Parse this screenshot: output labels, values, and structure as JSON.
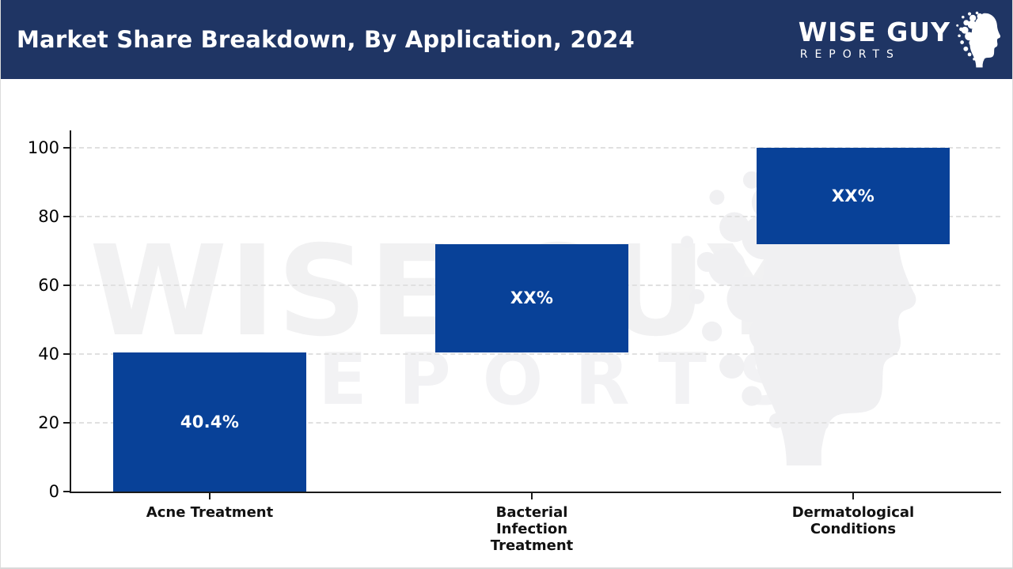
{
  "header": {
    "title": "Market Share Breakdown, By Application, 2024",
    "logo": {
      "line1": "WISE GUY",
      "line2": "REPORTS"
    }
  },
  "watermark": {
    "line1": "WISE GUY",
    "line2": "REPORTS"
  },
  "chart_data": {
    "type": "bar",
    "subtype": "waterfall",
    "title": "Market Share Breakdown, By Application, 2024",
    "categories": [
      "Acne Treatment",
      "Bacterial Infection Treatment",
      "Dermatological Conditions"
    ],
    "category_lines": [
      [
        "Acne Treatment"
      ],
      [
        "Bacterial",
        "Infection",
        "Treatment"
      ],
      [
        "Dermatological",
        "Conditions"
      ]
    ],
    "series": [
      {
        "name": "Market Share (%)",
        "segments": [
          {
            "start": 0,
            "end": 40.4,
            "label": "40.4%"
          },
          {
            "start": 40.4,
            "end": 72,
            "label": "XX%"
          },
          {
            "start": 72,
            "end": 100,
            "label": "XX%"
          }
        ]
      }
    ],
    "yticks": [
      0,
      20,
      40,
      60,
      80,
      100
    ],
    "ylim": [
      0,
      105
    ],
    "xlabel": "",
    "ylabel": "",
    "grid": "horizontal-dashed",
    "legend": "none",
    "bar_color": "#084198",
    "bar_label_color": "#ffffff"
  },
  "colors": {
    "header_bg": "#1f3564",
    "title_text": "#ffffff",
    "axis": "#1a1a1a",
    "gridline": "#e0e0e0",
    "watermark": "#f1f1f2",
    "page_border": "#d9d9d9"
  }
}
